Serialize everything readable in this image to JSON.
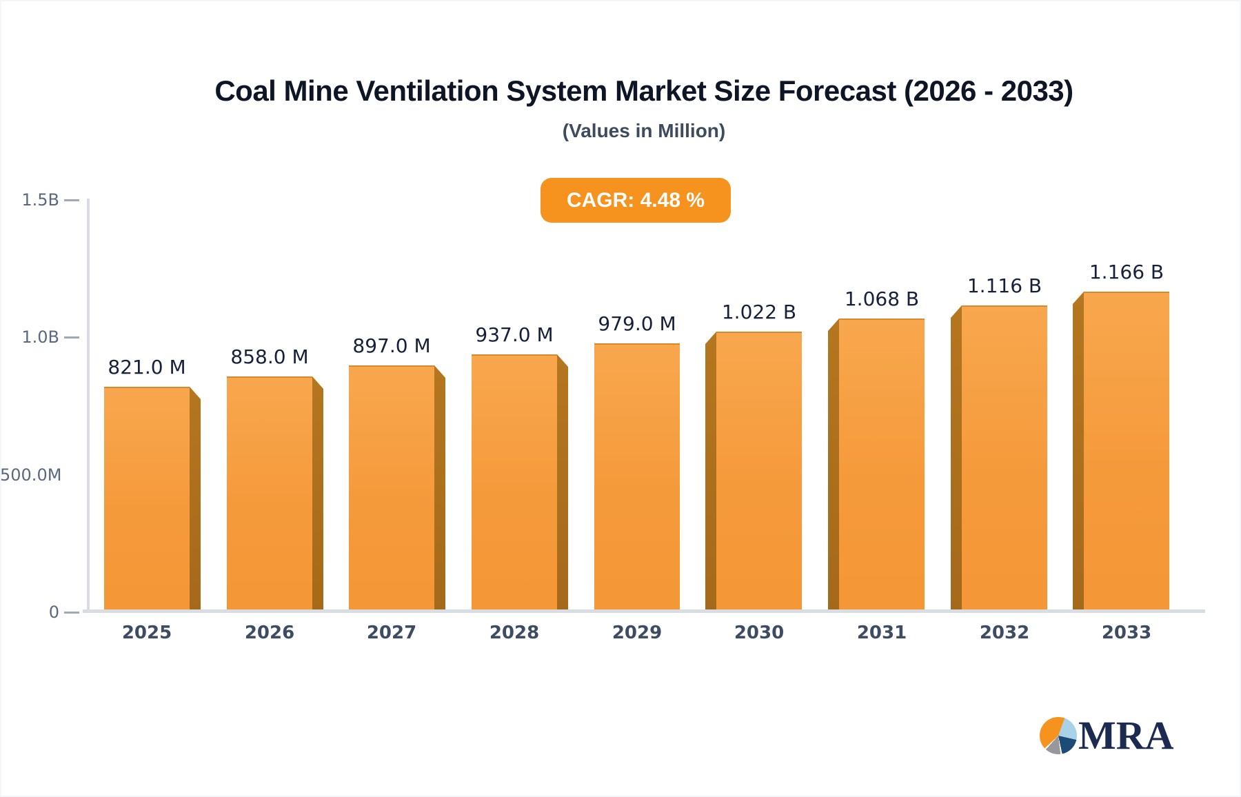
{
  "header": {
    "title": "Coal Mine Ventilation System Market Size Forecast (2026 - 2033)",
    "subtitle": "(Values in Million)"
  },
  "badge": {
    "label": "CAGR: 4.48 %",
    "bg_color": "#F6921E",
    "text_color": "#FFFFFF"
  },
  "chart_data": {
    "type": "bar",
    "title": "Coal Mine Ventilation System Market Size Forecast (2026 - 2033)",
    "subtitle": "(Values in Million)",
    "cagr_label": "CAGR: 4.48 %",
    "categories": [
      "2025",
      "2026",
      "2027",
      "2028",
      "2029",
      "2030",
      "2031",
      "2032",
      "2033"
    ],
    "values_millions": [
      821,
      858,
      897,
      937,
      979,
      1022,
      1068,
      1116,
      1166
    ],
    "bar_labels": [
      "821.0 M",
      "858.0 M",
      "897.0 M",
      "937.0 M",
      "979.0 M",
      "1.022 B",
      "1.068 B",
      "1.116 B",
      "1.166 B"
    ],
    "y_ticks": [
      {
        "label": "1.5B",
        "value_millions": 1500,
        "dash": true
      },
      {
        "label": "1.0B",
        "value_millions": 1000,
        "dash": true
      },
      {
        "label": "500.0M",
        "value_millions": 500,
        "dash": false
      },
      {
        "label": "0",
        "value_millions": 0,
        "dash": true
      }
    ],
    "ylim_millions": [
      0,
      1500
    ],
    "grid": false,
    "legend": false,
    "bar_face_color_top": "#F8A74E",
    "bar_face_color_bottom": "#F49736",
    "bar_side_color": "#AC6F1E",
    "axis_color": "#D8DCE3"
  },
  "logo": {
    "text": "MRA",
    "text_color": "#1A2A50",
    "pie_slice_colors": [
      "#F6921E",
      "#A9D2E8",
      "#1C4B77",
      "#98979B"
    ]
  }
}
